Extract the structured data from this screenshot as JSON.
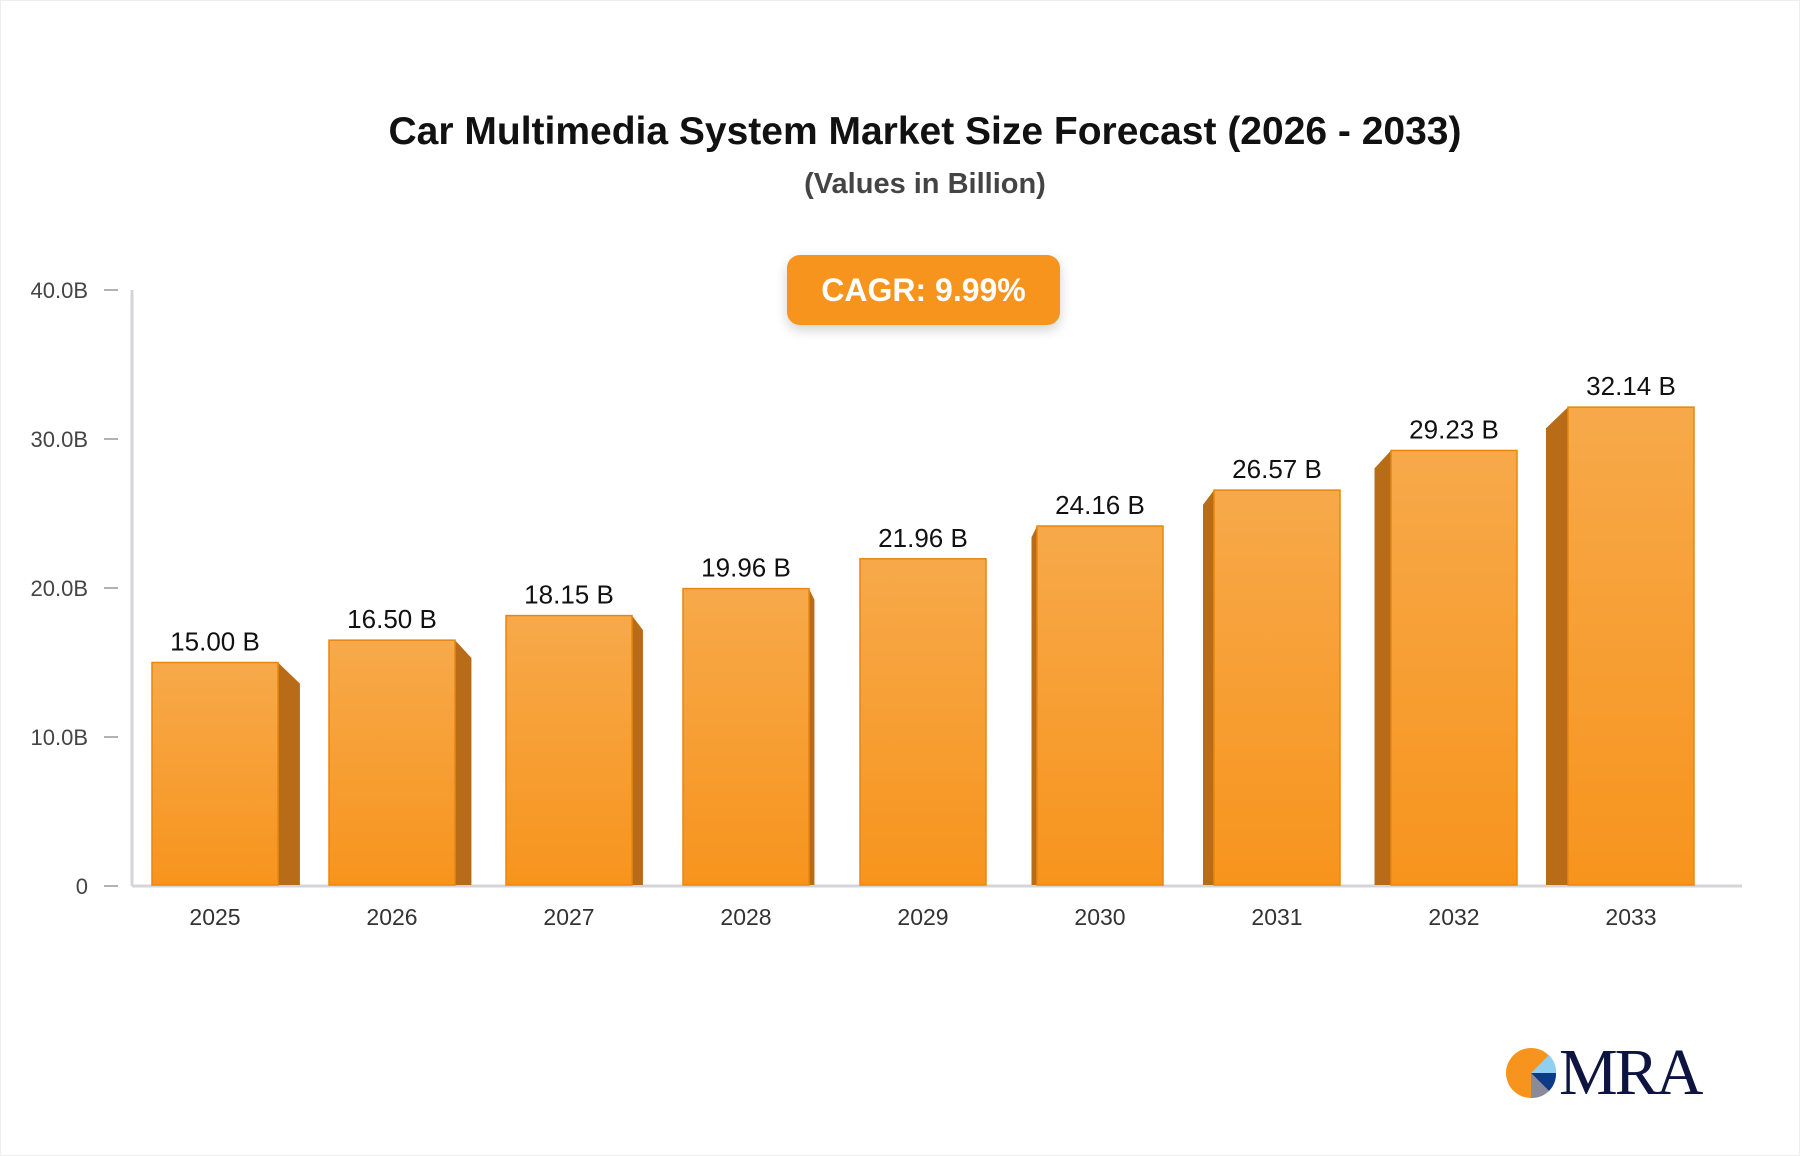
{
  "chart_data": {
    "type": "bar",
    "title": "Car Multimedia System Market Size Forecast (2026 - 2033)",
    "subtitle": "(Values in Billion)",
    "annotation": "CAGR: 9.99%",
    "categories": [
      "2025",
      "2026",
      "2027",
      "2028",
      "2029",
      "2030",
      "2031",
      "2032",
      "2033"
    ],
    "values": [
      15.0,
      16.5,
      18.15,
      19.96,
      21.96,
      24.16,
      26.57,
      29.23,
      32.14
    ],
    "data_labels": [
      "15.00 B",
      "16.50 B",
      "18.15 B",
      "19.96 B",
      "21.96 B",
      "24.16 B",
      "26.57 B",
      "29.23 B",
      "32.14 B"
    ],
    "yticks": [
      0,
      10,
      20,
      30,
      40
    ],
    "ytick_labels": [
      "0",
      "10.0B",
      "20.0B",
      "30.0B",
      "40.0B"
    ],
    "ylim": [
      0,
      40
    ],
    "xlabel": "",
    "ylabel": "",
    "grid": false,
    "legend": "none",
    "colors": {
      "bar_top": "#F7A94A",
      "bar_bottom": "#F7941D",
      "bar_side": "#B96C17",
      "accent": "#F7941D",
      "axis": "#D4D5DB"
    }
  },
  "logo": {
    "text": "MRA"
  }
}
